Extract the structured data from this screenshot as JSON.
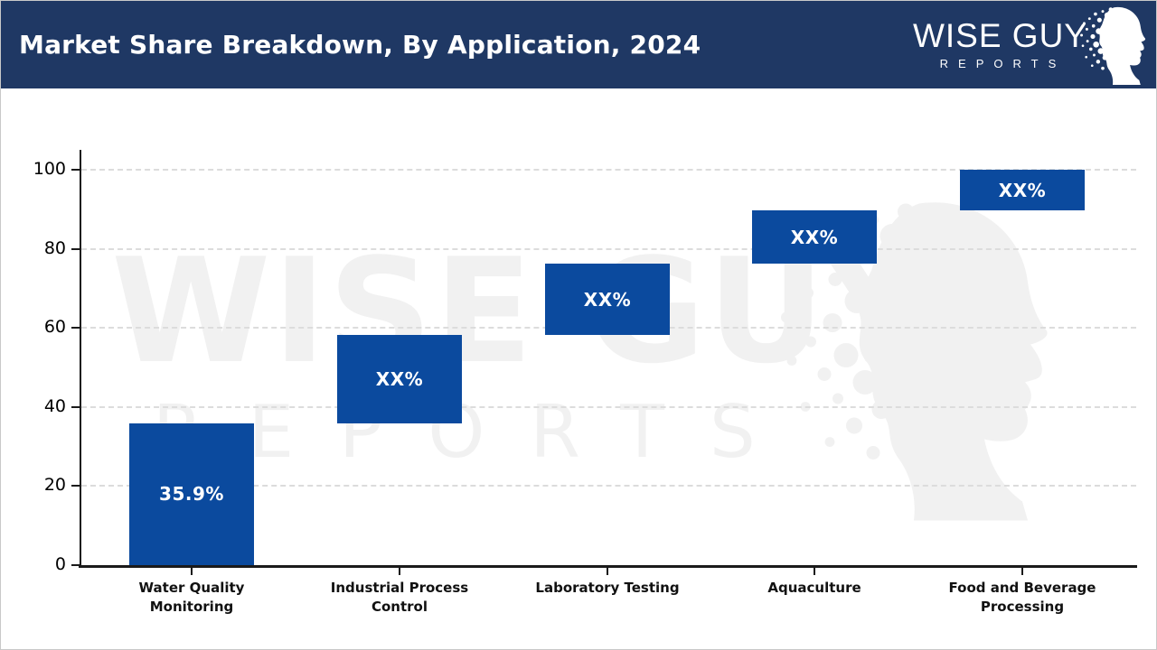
{
  "header": {
    "title": "Market Share Breakdown, By Application, 2024",
    "logo": {
      "wordmark": "WISE GUY",
      "subtext": "REPORTS"
    }
  },
  "watermark": {
    "wordmark": "WISE GUY",
    "subtext": "REPORTS"
  },
  "icons": {
    "logo_face": "dotted-head-profile-icon"
  },
  "chart_data": {
    "type": "bar",
    "subtype": "floating-waterfall",
    "title": "Market Share Breakdown, By Application, 2024",
    "categories": [
      "Water Quality Monitoring",
      "Industrial Process Control",
      "Laboratory Testing",
      "Aquaculture",
      "Food and Beverage Processing"
    ],
    "series": [
      {
        "name": "Market share (%)",
        "segments": [
          {
            "start": 0,
            "end": 35.9,
            "label": "35.9%"
          },
          {
            "start": 35.9,
            "end": 58.2,
            "label": "XX%"
          },
          {
            "start": 58.2,
            "end": 76.2,
            "label": "XX%"
          },
          {
            "start": 76.2,
            "end": 89.7,
            "label": "XX%"
          },
          {
            "start": 89.7,
            "end": 100,
            "label": "XX%"
          }
        ]
      }
    ],
    "xlabel": "",
    "ylabel": "",
    "ylim": [
      0,
      105
    ],
    "yticks": [
      0,
      20,
      40,
      60,
      80,
      100
    ],
    "grid": "horizontal-dashed",
    "legend": "none",
    "colors": {
      "bar": "#0b4a9e",
      "bar_label": "#ffffff",
      "axis": "#1a1a1a",
      "gridline": "#dcdcdc",
      "header_bg": "#1f3864",
      "header_text": "#ffffff",
      "watermark": "#f1f1f1"
    }
  }
}
